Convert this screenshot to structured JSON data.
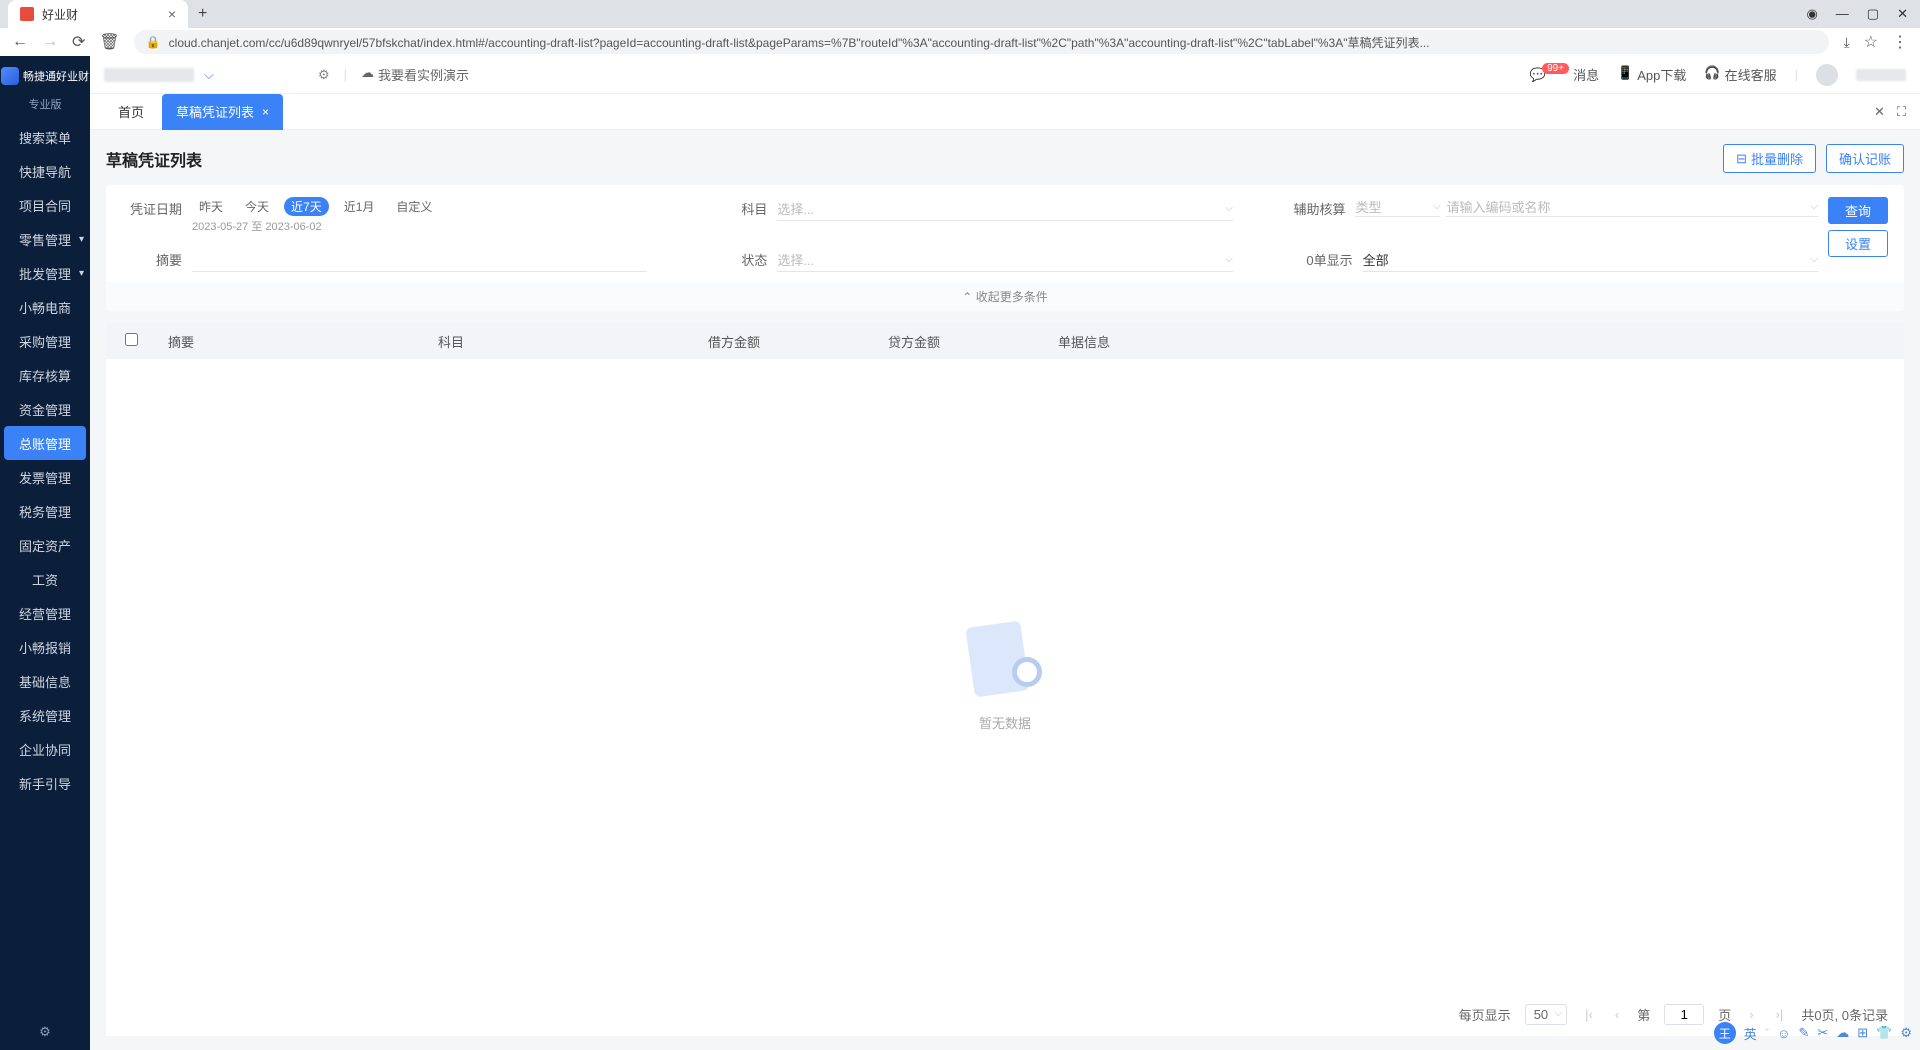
{
  "browser": {
    "tab_title": "好业财",
    "url": "cloud.chanjet.com/cc/u6d89qwnryel/57bfskchat/index.html#/accounting-draft-list?pageId=accounting-draft-list&pageParams=%7B\"routeId\"%3A\"accounting-draft-list\"%2C\"path\"%3A\"accounting-draft-list\"%2C\"tabLabel\"%3A\"草稿凭证列表..."
  },
  "sidebar": {
    "product": "畅捷通好业财",
    "edition": "专业版",
    "items": [
      {
        "label": "搜索菜单",
        "expandable": false
      },
      {
        "label": "快捷导航",
        "expandable": false
      },
      {
        "label": "项目合同",
        "expandable": false
      },
      {
        "label": "零售管理",
        "expandable": true
      },
      {
        "label": "批发管理",
        "expandable": true
      },
      {
        "label": "小畅电商",
        "expandable": false
      },
      {
        "label": "采购管理",
        "expandable": false
      },
      {
        "label": "库存核算",
        "expandable": false
      },
      {
        "label": "资金管理",
        "expandable": false
      },
      {
        "label": "总账管理",
        "expandable": false,
        "active": true
      },
      {
        "label": "发票管理",
        "expandable": false
      },
      {
        "label": "税务管理",
        "expandable": false
      },
      {
        "label": "固定资产",
        "expandable": false
      },
      {
        "label": "工资",
        "expandable": false
      },
      {
        "label": "经营管理",
        "expandable": false
      },
      {
        "label": "小畅报销",
        "expandable": false
      },
      {
        "label": "基础信息",
        "expandable": false
      },
      {
        "label": "系统管理",
        "expandable": false
      },
      {
        "label": "企业协同",
        "expandable": false
      },
      {
        "label": "新手引导",
        "expandable": false
      }
    ]
  },
  "header": {
    "demo_link": "我要看实例演示",
    "msg_label": "消息",
    "msg_badge": "99+",
    "app_dl": "App下载",
    "support": "在线客服"
  },
  "tabs": {
    "home": "首页",
    "active": "草稿凭证列表"
  },
  "page": {
    "title": "草稿凭证列表",
    "batch_delete": "批量删除",
    "confirm_post": "确认记账"
  },
  "filters": {
    "date_label": "凭证日期",
    "date_options": [
      "昨天",
      "今天",
      "近7天",
      "近1月",
      "自定义"
    ],
    "date_active_index": 2,
    "date_range": "2023-05-27 至 2023-06-02",
    "subject_label": "科目",
    "subject_placeholder": "选择...",
    "aux_label": "辅助核算",
    "aux_type_placeholder": "类型",
    "aux_code_placeholder": "请输入编码或名称",
    "summary_label": "摘要",
    "status_label": "状态",
    "status_placeholder": "选择...",
    "zero_label": "0单显示",
    "zero_value": "全部",
    "query_btn": "查询",
    "settings_btn": "设置",
    "collapse": "收起更多条件"
  },
  "table": {
    "cols": {
      "summary": "摘要",
      "subject": "科目",
      "debit": "借方金额",
      "credit": "贷方金额",
      "doc": "单据信息"
    },
    "empty": "暂无数据"
  },
  "pager": {
    "per_page_label": "每页显示",
    "per_page_value": "50",
    "page_prefix": "第",
    "page_value": "1",
    "page_suffix": "页",
    "total": "共0页, 0条记录"
  },
  "tray": {
    "ime": "英"
  }
}
